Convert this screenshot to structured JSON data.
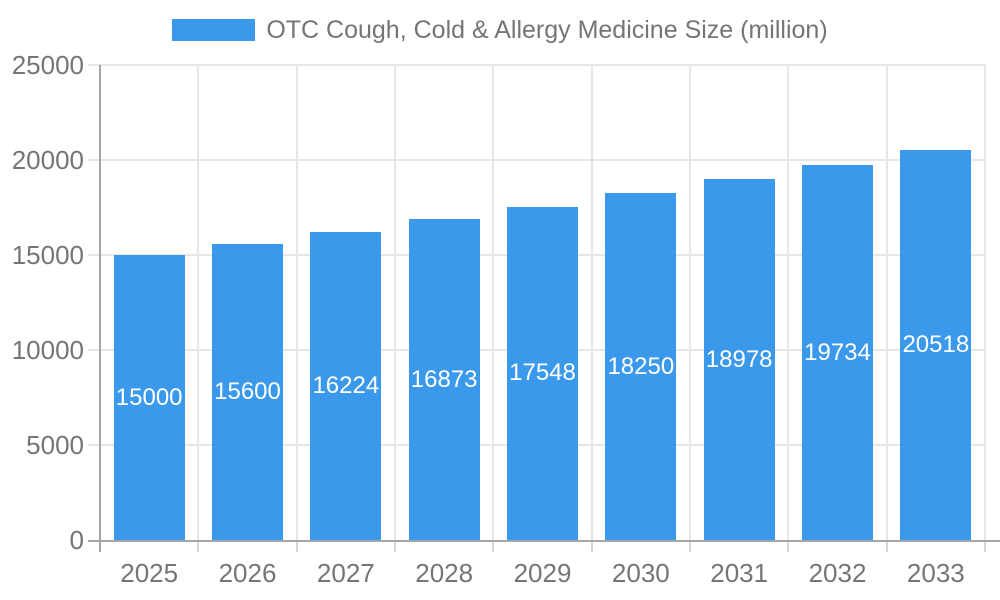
{
  "legend": {
    "label": "OTC Cough, Cold & Allergy Medicine Size (million)"
  },
  "chart_data": {
    "type": "bar",
    "title": "OTC Cough, Cold & Allergy Medicine Size (million)",
    "categories": [
      "2025",
      "2026",
      "2027",
      "2028",
      "2029",
      "2030",
      "2031",
      "2032",
      "2033"
    ],
    "series": [
      {
        "name": "OTC Cough, Cold & Allergy Medicine Size (million)",
        "values": [
          15000,
          15600,
          16224,
          16873,
          17548,
          18250,
          18978,
          19734,
          20518
        ]
      }
    ],
    "xlabel": "",
    "ylabel": "",
    "ylim": [
      0,
      25000
    ],
    "yticks": [
      0,
      5000,
      10000,
      15000,
      20000,
      25000
    ],
    "grid": true,
    "legend_position": "top",
    "bar_label_position": "inside-middle",
    "colors": {
      "bar": "#3b99ec",
      "bar_label": "#ffffff",
      "axis_line": "#a6a6a6",
      "grid_line": "#e6e6e6",
      "tick_line": "#d6d6d6",
      "text": "#757575",
      "background": "#ffffff"
    }
  }
}
